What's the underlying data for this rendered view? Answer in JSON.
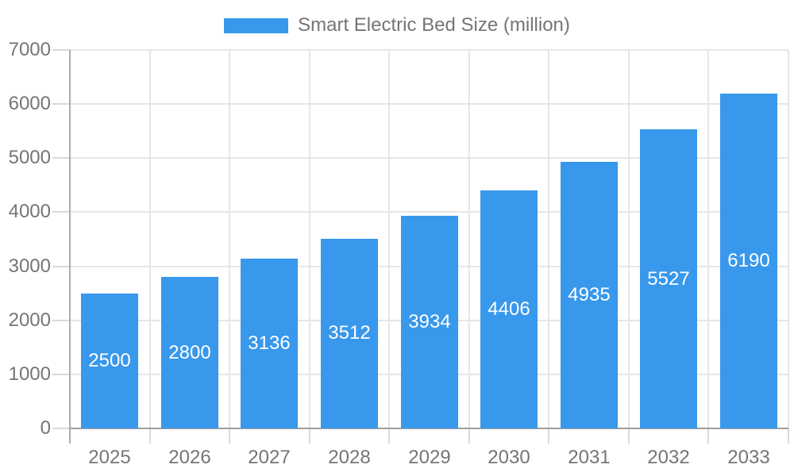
{
  "chart_data": {
    "type": "bar",
    "title": "Smart Electric Bed Size (million)",
    "categories": [
      "2025",
      "2026",
      "2027",
      "2028",
      "2029",
      "2030",
      "2031",
      "2032",
      "2033"
    ],
    "values": [
      2500,
      2800,
      3136,
      3512,
      3934,
      4406,
      4935,
      5527,
      6190
    ],
    "xlabel": "",
    "ylabel": "",
    "ylim": [
      0,
      7000
    ],
    "ytick_interval": 1000,
    "yticks": [
      0,
      1000,
      2000,
      3000,
      4000,
      5000,
      6000,
      7000
    ],
    "grid": true,
    "legend_position": "top-center",
    "colors": {
      "bar": "#3898EC",
      "bar_value_text": "#FFFFFF",
      "axis_label_text": "#757575",
      "legend_text": "#757575",
      "gridline": "#E6E6E6",
      "tick_line": "#D9D9D9",
      "y_axis_line": "#ADADAD",
      "baseline": "#9E9E9E"
    }
  }
}
